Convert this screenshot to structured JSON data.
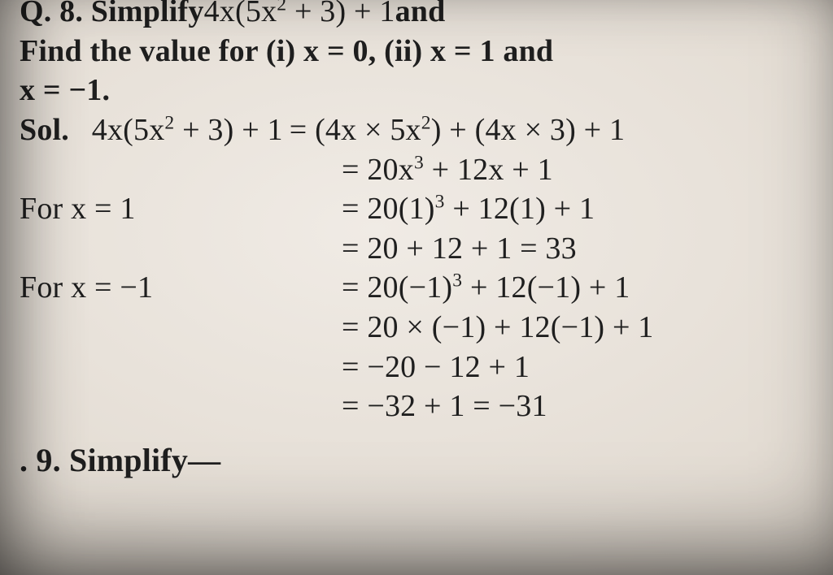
{
  "background_color": "#e8e1d6",
  "text_color": "#1f1f1f",
  "font_family": "Times New Roman",
  "base_fontsize_pt": 29,
  "partial_top": {
    "prefix_bold": "Q. 8. Simplify",
    "expr": " 4x(5x² + 3) + 1 ",
    "suffix_bold": "and"
  },
  "prompt": {
    "line1_a": "Find the value for (i) x = 0, (ii) x = 1 and",
    "line2": "x = −1."
  },
  "sol_label": "Sol.",
  "eq": {
    "l1_left": "4x(5x² + 3) + 1",
    "l1_right": "= (4x × 5x²) + (4x × 3) + 1",
    "l2_right": "= 20x³ + 12x + 1",
    "for1_left": "For x = 1",
    "l3_right": "= 20(1)³ + 12(1) + 1",
    "l4_right": "= 20 + 12 + 1 = 33",
    "form1_left": "For x = −1",
    "l5_right": "= 20(−1)³ + 12(−1) + 1",
    "l6_right": "= 20 × (−1) + 12(−1) + 1",
    "l7_right": "= −20 − 12 + 1",
    "l8_right": "= −32 + 1 = −31"
  },
  "q9_label": ". 9. Simplify—"
}
